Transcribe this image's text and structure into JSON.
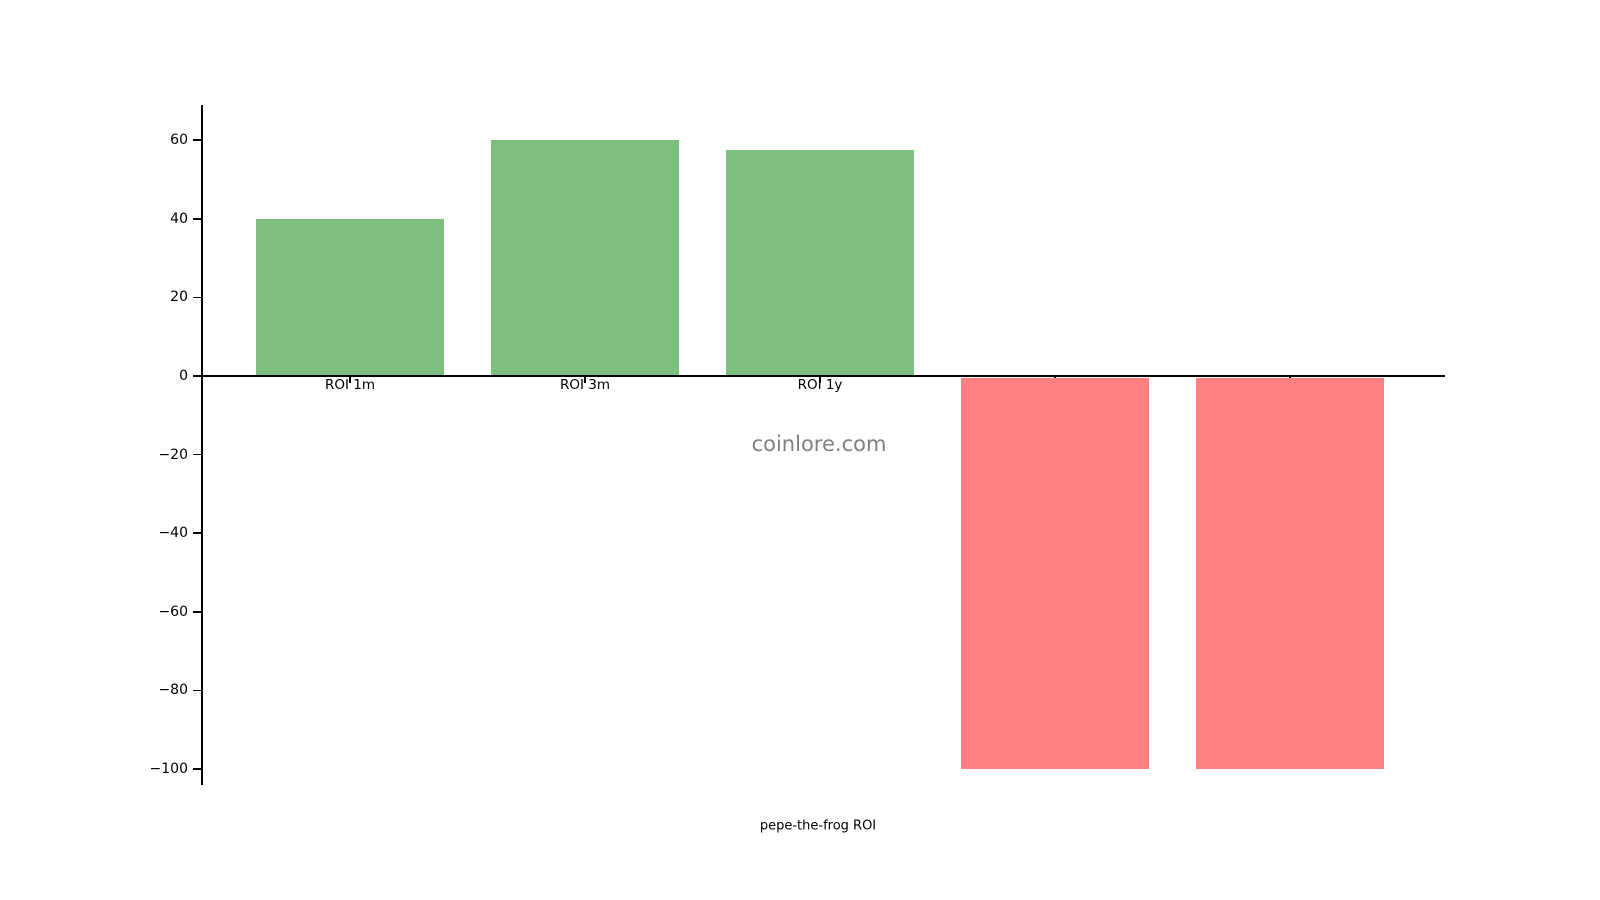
{
  "watermark": "coinlore.com",
  "footer_title": "pepe-the-frog ROI",
  "colors": {
    "positive_bar": "#7dbf7f",
    "negative_bar": "#ff8080",
    "axis": "#000000",
    "watermark": "#808080",
    "background": "#ffffff"
  },
  "chart_data": {
    "type": "bar",
    "title": "pepe-the-frog ROI",
    "categories": [
      "ROI 1m",
      "ROI 3m",
      "ROI 1y",
      "",
      ""
    ],
    "values": [
      40,
      60,
      57.5,
      -100,
      -100
    ],
    "series": [
      {
        "name": "pepe-the-frog ROI",
        "values": [
          40,
          60,
          57.5,
          -100,
          -100
        ]
      }
    ],
    "yticks": [
      60,
      40,
      20,
      0,
      -20,
      -40,
      -60,
      -80,
      -100
    ],
    "ylim": [
      -104,
      69
    ],
    "xlabel": "",
    "ylabel": "",
    "grid": false,
    "legend": "none",
    "annotations": [
      "coinlore.com"
    ],
    "bar_color_rule": {
      "positive": "#7dbf7f",
      "negative": "#ff8080"
    }
  }
}
